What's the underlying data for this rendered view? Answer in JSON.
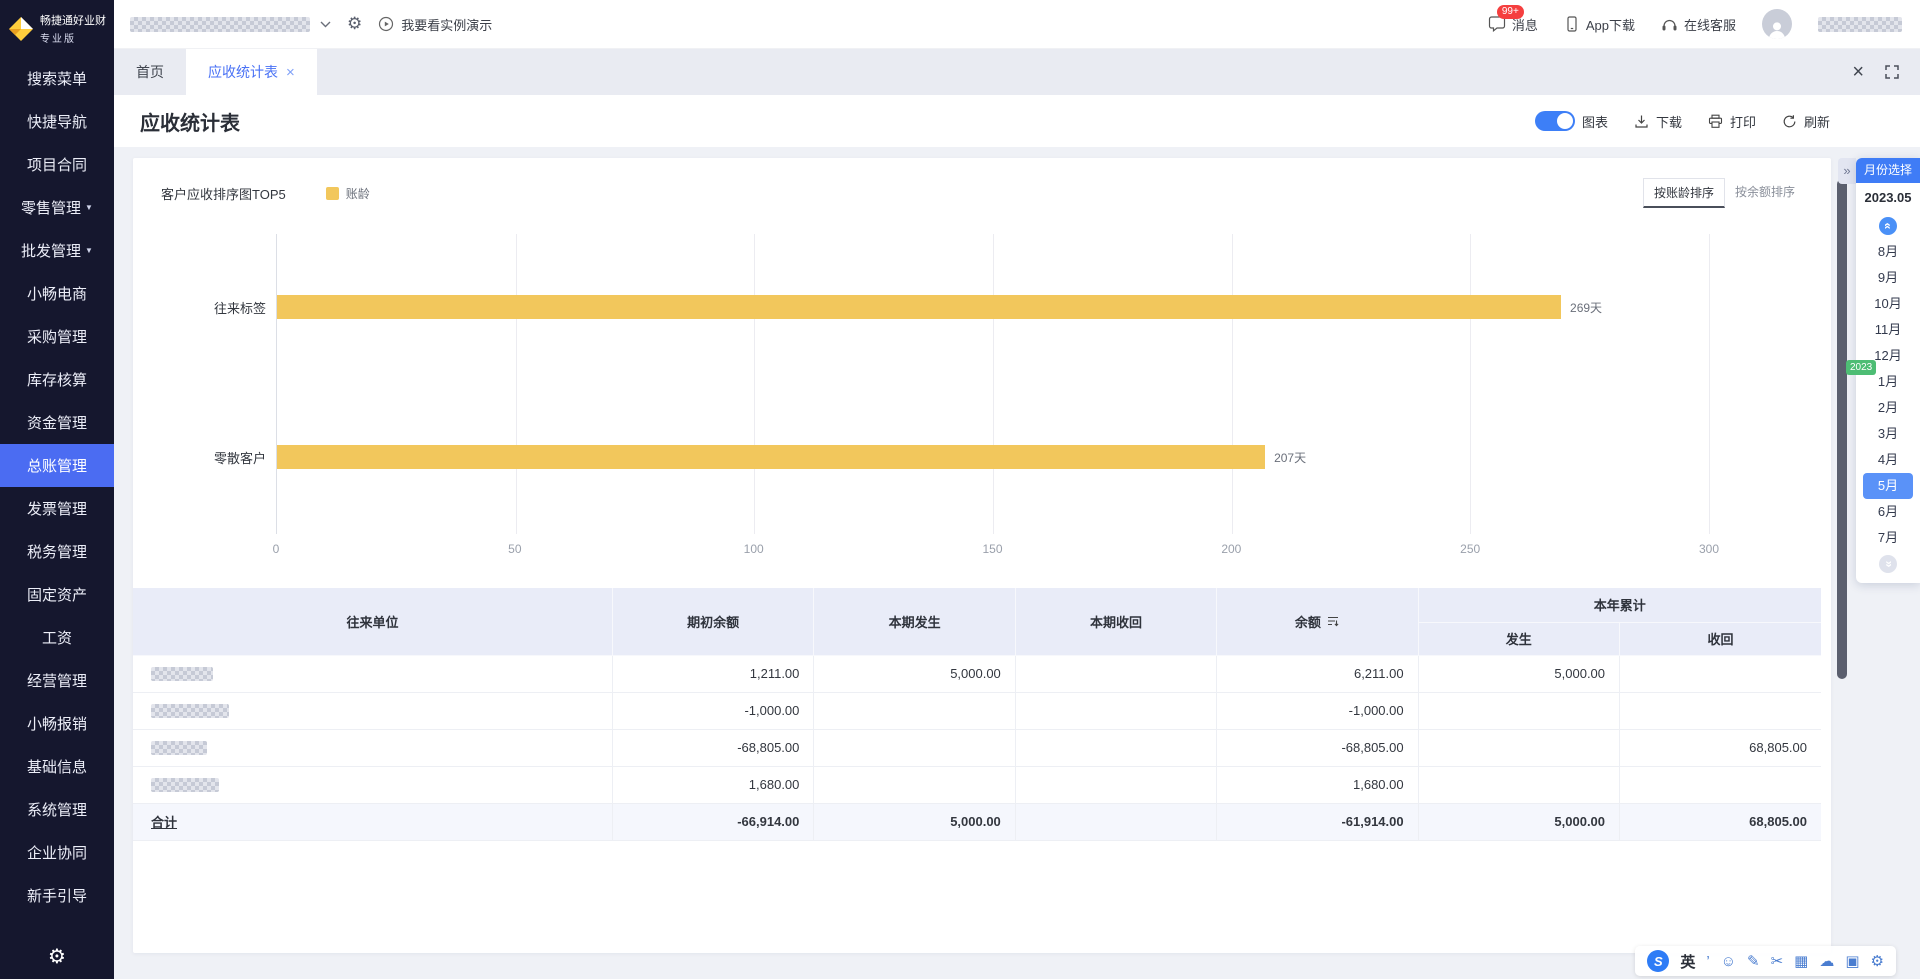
{
  "colors": {
    "accent_blue": "#4a78f5",
    "toggle_blue": "#3d7ff7",
    "bar_yellow": "#f2c75c",
    "badge_red": "#f53f3f",
    "year_tag_green": "#4dbd74",
    "sidebar_bg": "#15172e",
    "month_selected_blue": "#5a92f8"
  },
  "brand": {
    "name_line1": "畅捷通好业财",
    "name_line2": "专业版"
  },
  "topbar": {
    "demo_label": "我要看实例演示",
    "messages_label": "消息",
    "messages_badge": "99+",
    "app_download_label": "App下载",
    "online_service_label": "在线客服"
  },
  "tabs": {
    "items": [
      {
        "label": "首页",
        "active": false,
        "closable": false
      },
      {
        "label": "应收统计表",
        "active": true,
        "closable": true
      }
    ]
  },
  "page": {
    "title": "应收统计表",
    "toolbar": {
      "chart_toggle_label": "图表",
      "chart_toggle_on": true,
      "download_label": "下载",
      "print_label": "打印",
      "refresh_label": "刷新"
    }
  },
  "sidebar": {
    "items": [
      {
        "label": "搜索菜单"
      },
      {
        "label": "快捷导航"
      },
      {
        "label": "项目合同"
      },
      {
        "label": "零售管理",
        "caret": true
      },
      {
        "label": "批发管理",
        "caret": true
      },
      {
        "label": "小畅电商"
      },
      {
        "label": "采购管理"
      },
      {
        "label": "库存核算"
      },
      {
        "label": "资金管理"
      },
      {
        "label": "总账管理",
        "active": true
      },
      {
        "label": "发票管理"
      },
      {
        "label": "税务管理"
      },
      {
        "label": "固定资产"
      },
      {
        "label": "工资"
      },
      {
        "label": "经营管理"
      },
      {
        "label": "小畅报销"
      },
      {
        "label": "基础信息"
      },
      {
        "label": "系统管理"
      },
      {
        "label": "企业协同"
      },
      {
        "label": "新手引导"
      }
    ]
  },
  "chart_data": {
    "type": "bar",
    "orientation": "horizontal",
    "title": "客户应收排序图TOP5",
    "legend": [
      {
        "label": "账龄",
        "color": "#f2c75c"
      }
    ],
    "categories": [
      "往来标签",
      "零散客户"
    ],
    "values": [
      269,
      207
    ],
    "unit": "天",
    "value_labels": [
      "269天",
      "207天"
    ],
    "xlim": [
      0,
      300
    ],
    "xticks": [
      0,
      50,
      100,
      150,
      200,
      250,
      300
    ],
    "grid": true,
    "sort_tabs": [
      {
        "label": "按账龄排序",
        "active": true
      },
      {
        "label": "按余额排序",
        "active": false
      }
    ]
  },
  "table": {
    "columns": {
      "partner": "往来单位",
      "opening": "期初余额",
      "occurred": "本期发生",
      "received": "本期收回",
      "balance": "余额",
      "ytd": "本年累计",
      "ytd_occurred": "发生",
      "ytd_received": "收回"
    },
    "rows": [
      {
        "partner_redacted": true,
        "opening": "1,211.00",
        "occurred": "5,000.00",
        "received": "",
        "balance": "6,211.00",
        "ytd_occurred": "5,000.00",
        "ytd_received": ""
      },
      {
        "partner_redacted": true,
        "opening": "-1,000.00",
        "occurred": "",
        "received": "",
        "balance": "-1,000.00",
        "ytd_occurred": "",
        "ytd_received": ""
      },
      {
        "partner_redacted": true,
        "opening": "-68,805.00",
        "occurred": "",
        "received": "",
        "balance": "-68,805.00",
        "ytd_occurred": "",
        "ytd_received": "68,805.00"
      },
      {
        "partner_redacted": true,
        "opening": "1,680.00",
        "occurred": "",
        "received": "",
        "balance": "1,680.00",
        "ytd_occurred": "",
        "ytd_received": ""
      }
    ],
    "total_row": {
      "label": "合计",
      "opening": "-66,914.00",
      "occurred": "5,000.00",
      "received": "",
      "balance": "-61,914.00",
      "ytd_occurred": "5,000.00",
      "ytd_received": "68,805.00"
    }
  },
  "month_panel": {
    "title": "月份选择",
    "current": "2023.05",
    "year_tag": "2023",
    "months": [
      "8月",
      "9月",
      "10月",
      "11月",
      "12月",
      "1月",
      "2月",
      "3月",
      "4月",
      "5月",
      "6月",
      "7月"
    ],
    "selected_index": 9,
    "year_tag_after_index": 4,
    "collapse_glyph": "»"
  },
  "ime": {
    "logo_glyph": "S",
    "lang_indicator": "英",
    "icons": [
      {
        "name": "apostrophe-icon",
        "glyph": "’"
      },
      {
        "name": "emoji-icon",
        "glyph": "☺"
      },
      {
        "name": "handwriting-icon",
        "glyph": "✎"
      },
      {
        "name": "screenshot-icon",
        "glyph": "✂"
      },
      {
        "name": "keyboard-icon",
        "glyph": "▦"
      },
      {
        "name": "cloud-icon",
        "glyph": "☁"
      },
      {
        "name": "toolbox-icon",
        "glyph": "▣"
      },
      {
        "name": "ime-settings-icon",
        "glyph": "⚙"
      }
    ]
  }
}
